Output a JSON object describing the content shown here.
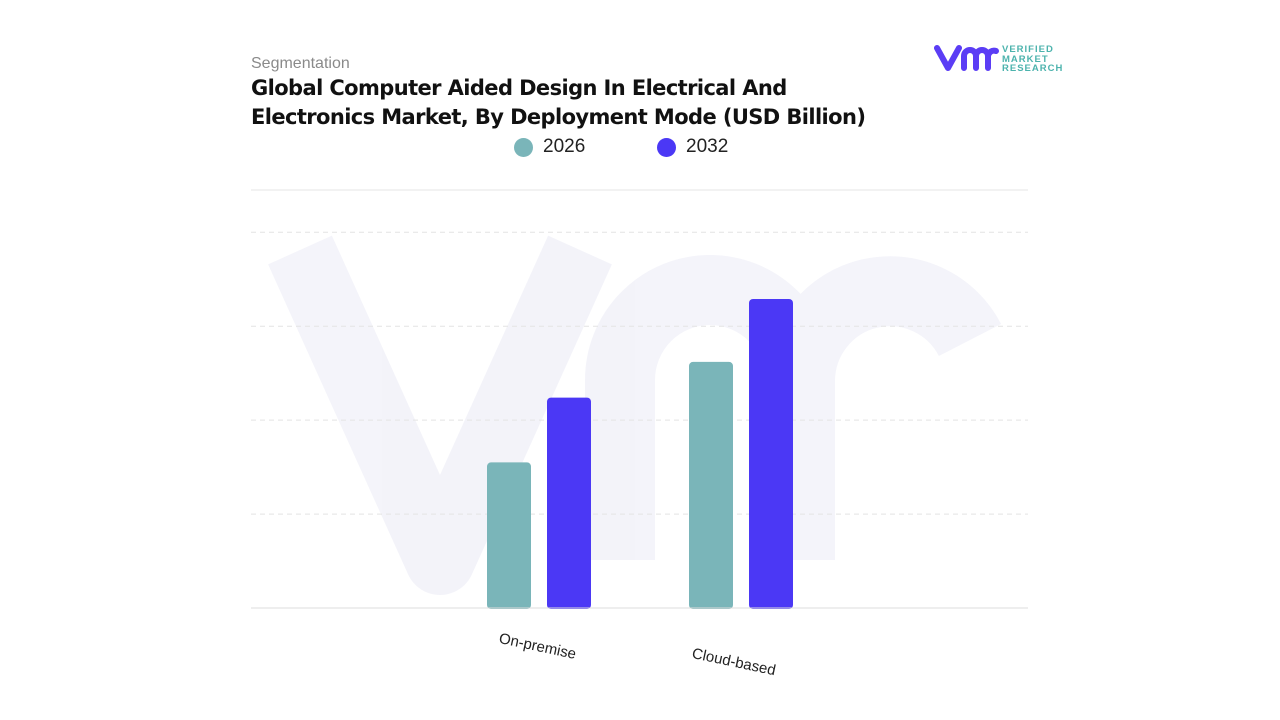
{
  "header": {
    "segment_label": "Segmentation",
    "title": "Global Computer Aided Design In Electrical And Electronics Market, By Deployment Mode (USD Billion)"
  },
  "logo": {
    "lines": [
      "VERIFIED",
      "MARKET",
      "RESEARCH"
    ],
    "brand_color": "#5b3df5",
    "text_color": "#4cb3ad"
  },
  "chart_data": {
    "type": "bar",
    "title": "Global Computer Aided Design In Electrical And Electronics Market, By Deployment Mode (USD Billion)",
    "categories": [
      "On-premise",
      "Cloud-based"
    ],
    "series": [
      {
        "name": "2026",
        "color": "#7ab5b9",
        "values": [
          1.55,
          2.62
        ]
      },
      {
        "name": "2032",
        "color": "#4b38f5",
        "values": [
          2.24,
          3.29
        ]
      }
    ],
    "xlabel": "",
    "ylabel": "",
    "ylim": [
      0,
      4.45
    ],
    "gridlines": [
      1,
      2,
      3,
      4
    ],
    "grid": true,
    "y_tick_labels_shown": false,
    "legend_position": "top"
  }
}
